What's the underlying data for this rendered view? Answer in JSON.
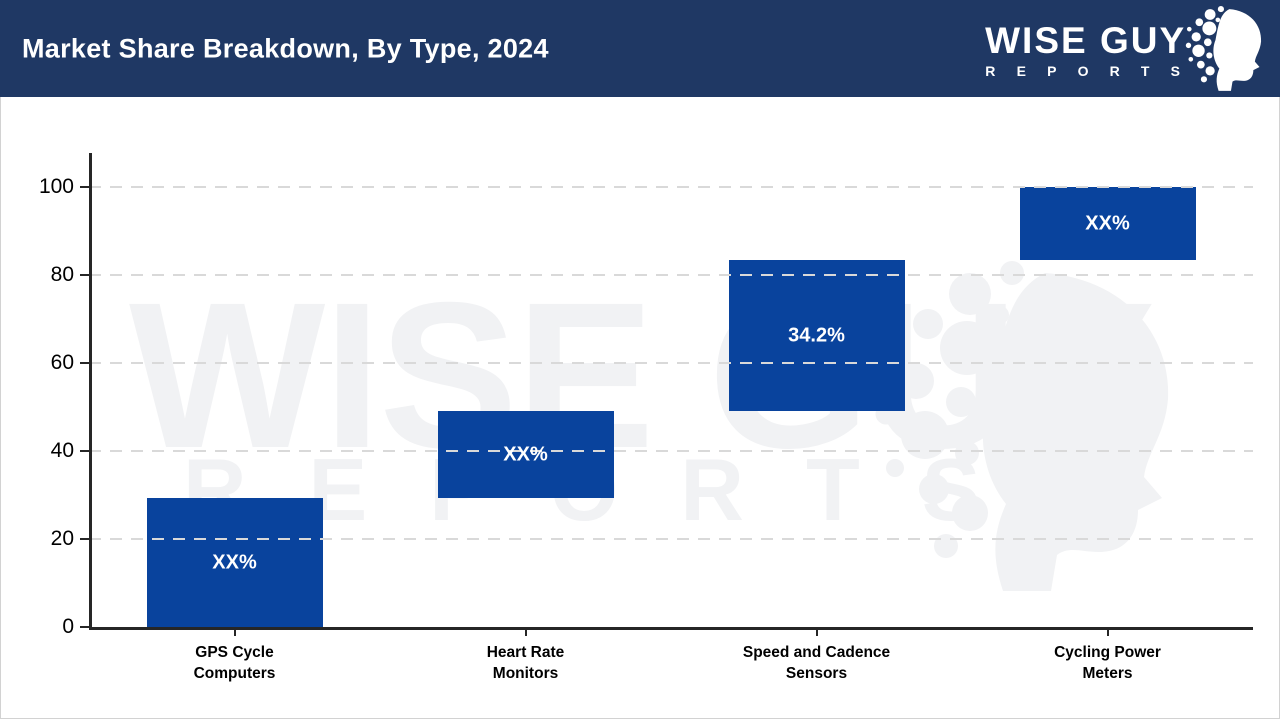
{
  "header": {
    "title": "Market Share Breakdown, By Type, 2024",
    "logo": {
      "name": "WISE GUY",
      "subtitle": "REPORTS"
    }
  },
  "watermark": {
    "line1": "WISE GUY",
    "line2": "REPORTS"
  },
  "colors": {
    "header_bg": "#1f3864",
    "bar_fill": "#09439d",
    "bar_label": "#ffffff",
    "gridline": "#d9d9d9",
    "axis": "#262626",
    "watermark": "#f1f2f4"
  },
  "chart_data": {
    "type": "bar",
    "subtype": "floating-waterfall",
    "title": "Market Share Breakdown, By Type, 2024",
    "xlabel": "",
    "ylabel": "",
    "ylim": [
      0,
      100
    ],
    "yticks": [
      0,
      20,
      40,
      60,
      80,
      100
    ],
    "grid": "horizontal-dashed, drawn above bars",
    "legend": "none",
    "categories": [
      "GPS Cycle Computers",
      "Heart Rate Monitors",
      "Speed and Cadence Sensors",
      "Cycling Power Meters"
    ],
    "segments": [
      {
        "category_lines": [
          "GPS Cycle",
          "Computers"
        ],
        "label": "XX%",
        "start": 0,
        "end": 29.3,
        "value": 29.3
      },
      {
        "category_lines": [
          "Heart Rate",
          "Monitors"
        ],
        "label": "XX%",
        "start": 29.3,
        "end": 49.1,
        "value": 19.8
      },
      {
        "category_lines": [
          "Speed and Cadence",
          "Sensors"
        ],
        "label": "34.2%",
        "start": 49.1,
        "end": 83.3,
        "value": 34.2
      },
      {
        "category_lines": [
          "Cycling Power",
          "Meters"
        ],
        "label": "XX%",
        "start": 83.3,
        "end": 100,
        "value": 16.7
      }
    ]
  }
}
